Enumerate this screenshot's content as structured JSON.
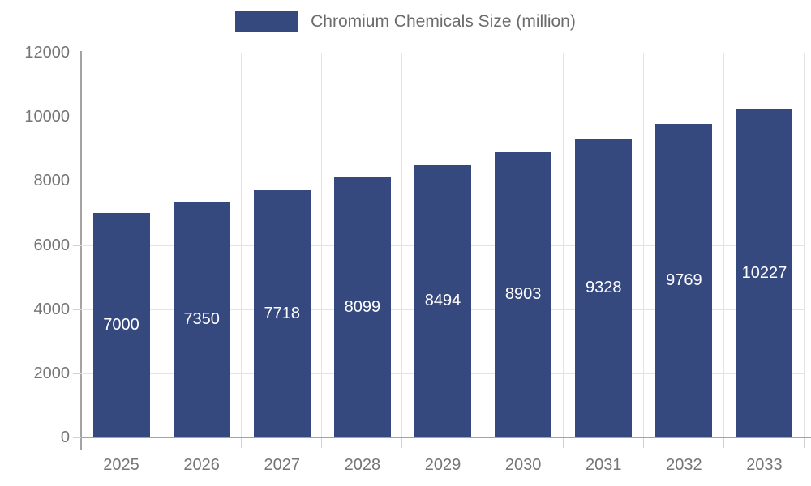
{
  "legend": {
    "label": "Chromium Chemicals Size (million)"
  },
  "chart_data": {
    "type": "bar",
    "title": "Chromium Chemicals Size (million)",
    "series_name": "Chromium Chemicals Size (million)",
    "categories": [
      "2025",
      "2026",
      "2027",
      "2028",
      "2029",
      "2030",
      "2031",
      "2032",
      "2033"
    ],
    "values": [
      7000,
      7350,
      7718,
      8099,
      8494,
      8903,
      9328,
      9769,
      10227
    ],
    "xlabel": "",
    "ylabel": "",
    "ylim": [
      0,
      12000
    ],
    "yticks": [
      0,
      2000,
      4000,
      6000,
      8000,
      10000,
      12000
    ],
    "grid": true,
    "legend_position": "top",
    "bar_labels_visible": true,
    "bar_label_placement": "inside-center"
  },
  "colors": {
    "bar": "#36497F",
    "bar_label": "#ffffff",
    "gridline": "#e4e4e4",
    "axis_line": "#a3a3a3",
    "tick": "#d0d0d0",
    "axis_text": "#757575",
    "legend_text": "#6b6b6b",
    "background": "#ffffff"
  }
}
